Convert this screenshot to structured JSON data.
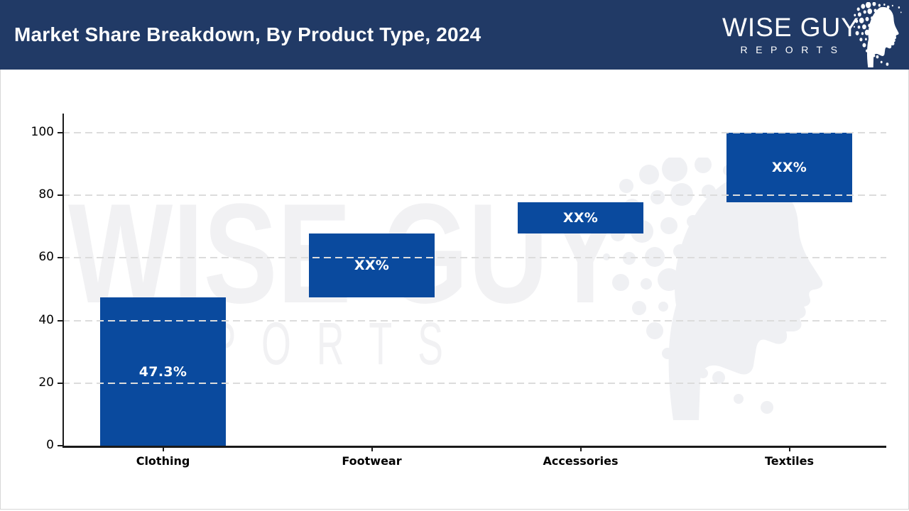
{
  "header": {
    "title": "Market Share Breakdown, By Product Type, 2024",
    "bg_color": "#213a66",
    "logo": {
      "line1": "WISE GUY",
      "line2": "REPORTS"
    }
  },
  "watermark": {
    "line1": "WISE GUY",
    "line2": "REPORTS"
  },
  "chart_data": {
    "type": "bar",
    "subtype": "waterfall",
    "title": "Market Share Breakdown, By Product Type, 2024",
    "categories": [
      "Clothing",
      "Footwear",
      "Accessories",
      "Textiles"
    ],
    "segments": [
      {
        "category": "Clothing",
        "start": 0,
        "end": 47.3,
        "label": "47.3%"
      },
      {
        "category": "Footwear",
        "start": 47.3,
        "end": 67.7,
        "label": "XX%"
      },
      {
        "category": "Accessories",
        "start": 67.7,
        "end": 77.7,
        "label": "XX%"
      },
      {
        "category": "Textiles",
        "start": 77.7,
        "end": 100,
        "label": "XX%"
      }
    ],
    "xlabel": "",
    "ylabel": "",
    "ylim": [
      0,
      100
    ],
    "yticks": [
      0,
      20,
      40,
      60,
      80,
      100
    ],
    "grid": "horizontal-dashed",
    "legend": "none",
    "bar_color": "#0a4a9e",
    "bar_label_color": "#ffffff",
    "axis_color": "#1a1a1a",
    "grid_color": "#dcdcdc"
  }
}
